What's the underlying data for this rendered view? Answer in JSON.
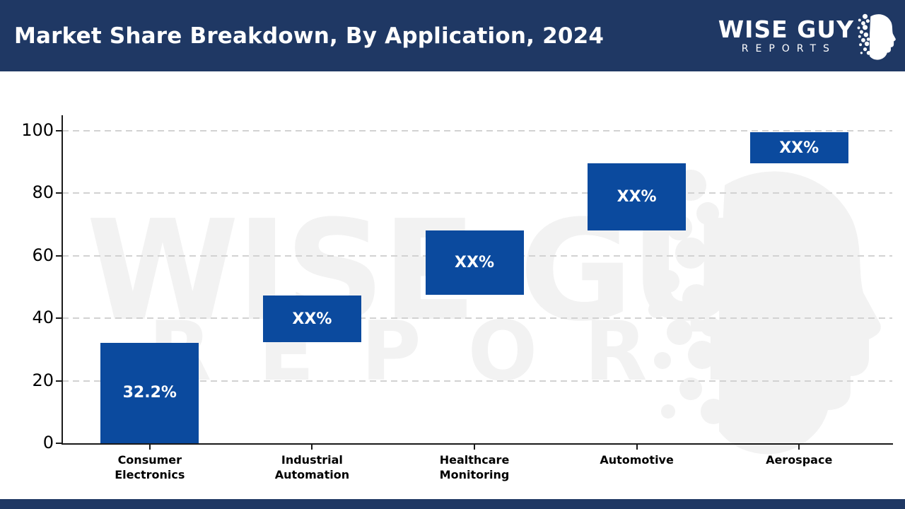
{
  "header": {
    "title": "Market Share Breakdown, By Application, 2024",
    "logo": {
      "wordmark": "WISE GUY",
      "subtext": "REPORTS"
    },
    "bg_color": "#1f3864",
    "text_color": "#ffffff"
  },
  "footer": {
    "bg_color": "#1f3864"
  },
  "watermark": {
    "wordmark": "WISE GUY",
    "subtext": "REPORTS"
  },
  "chart_data": {
    "type": "bar",
    "subtype": "floating_waterfall",
    "title": "Market Share Breakdown, By Application, 2024",
    "categories": [
      "Consumer Electronics",
      "Industrial Automation",
      "Healthcare Monitoring",
      "Automotive",
      "Aerospace"
    ],
    "category_label_lines": [
      [
        "Consumer",
        "Electronics"
      ],
      [
        "Industrial",
        "Automation"
      ],
      [
        "Healthcare",
        "Monitoring"
      ],
      [
        "Automotive"
      ],
      [
        "Aerospace"
      ]
    ],
    "segments": [
      {
        "category": "Consumer Electronics",
        "from": 0,
        "to": 32.2,
        "label": "32.2%"
      },
      {
        "category": "Industrial Automation",
        "from": 32.3,
        "to": 47.3,
        "label": "XX%"
      },
      {
        "category": "Healthcare Monitoring",
        "from": 47.6,
        "to": 68.1,
        "label": "XX%"
      },
      {
        "category": "Automotive",
        "from": 68.2,
        "to": 89.5,
        "label": "XX%"
      },
      {
        "category": "Aerospace",
        "from": 89.5,
        "to": 99.6,
        "label": "XX%"
      }
    ],
    "xlabel": "",
    "ylabel": "",
    "yticks": [
      0,
      20,
      40,
      60,
      80,
      100
    ],
    "ylim": [
      0,
      105
    ],
    "grid": {
      "horizontal": true,
      "style": "dashed",
      "color": "#d2d2d2"
    },
    "legend": "none",
    "bar_color": "#0b4a9e",
    "bar_label_color": "#ffffff",
    "axis_color": "#1a1a1a",
    "tick_label_color": "#000000"
  }
}
